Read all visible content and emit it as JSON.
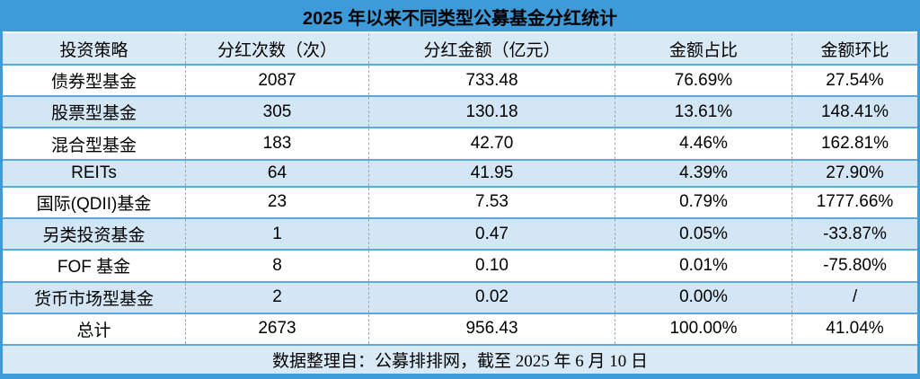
{
  "title": "2025 年以来不同类型公募基金分红统计",
  "columns": [
    "投资策略",
    "分红次数（次）",
    "分红金额（亿元）",
    "金额占比",
    "金额环比"
  ],
  "rows": [
    [
      "债券型基金",
      "2087",
      "733.48",
      "76.69%",
      "27.54%"
    ],
    [
      "股票型基金",
      "305",
      "130.18",
      "13.61%",
      "148.41%"
    ],
    [
      "混合型基金",
      "183",
      "42.70",
      "4.46%",
      "162.81%"
    ],
    [
      "REITs",
      "64",
      "41.95",
      "4.39%",
      "27.90%"
    ],
    [
      "国际(QDII)基金",
      "23",
      "7.53",
      "0.79%",
      "1777.66%"
    ],
    [
      "另类投资基金",
      "1",
      "0.47",
      "0.05%",
      "-33.87%"
    ],
    [
      "FOF 基金",
      "8",
      "0.10",
      "0.01%",
      "-75.80%"
    ],
    [
      "货币市场型基金",
      "2",
      "0.02",
      "0.00%",
      "/"
    ],
    [
      "总计",
      "2673",
      "956.43",
      "100.00%",
      "41.04%"
    ]
  ],
  "footer": "数据整理自：公募排排网，截至 2025 年 6 月 10 日",
  "colors": {
    "accent_blue": "#3d9bd9",
    "header_bg": "#d9e9f6",
    "alt_row_bg": "#d3e6f6",
    "row_separator": "#5ea9dc",
    "column_dash": "#a8a8a8",
    "text": "#000000"
  },
  "chart_data": {
    "type": "table",
    "title": "2025 年以来不同类型公募基金分红统计",
    "columns": [
      "投资策略",
      "分红次数（次）",
      "分红金额（亿元）",
      "金额占比",
      "金额环比"
    ],
    "categories": [
      "债券型基金",
      "股票型基金",
      "混合型基金",
      "REITs",
      "国际(QDII)基金",
      "另类投资基金",
      "FOF 基金",
      "货币市场型基金",
      "总计"
    ],
    "series": [
      {
        "name": "分红次数（次）",
        "values": [
          2087,
          305,
          183,
          64,
          23,
          1,
          8,
          2,
          2673
        ]
      },
      {
        "name": "分红金额（亿元）",
        "values": [
          733.48,
          130.18,
          42.7,
          41.95,
          7.53,
          0.47,
          0.1,
          0.02,
          956.43
        ]
      },
      {
        "name": "金额占比",
        "values": [
          "76.69%",
          "13.61%",
          "4.46%",
          "4.39%",
          "0.79%",
          "0.05%",
          "0.01%",
          "0.00%",
          "100.00%"
        ]
      },
      {
        "name": "金额环比",
        "values": [
          "27.54%",
          "148.41%",
          "162.81%",
          "27.90%",
          "1777.66%",
          "-33.87%",
          "-75.80%",
          "/",
          "41.04%"
        ]
      }
    ],
    "source_note": "数据整理自：公募排排网，截至 2025 年 6 月 10 日"
  }
}
